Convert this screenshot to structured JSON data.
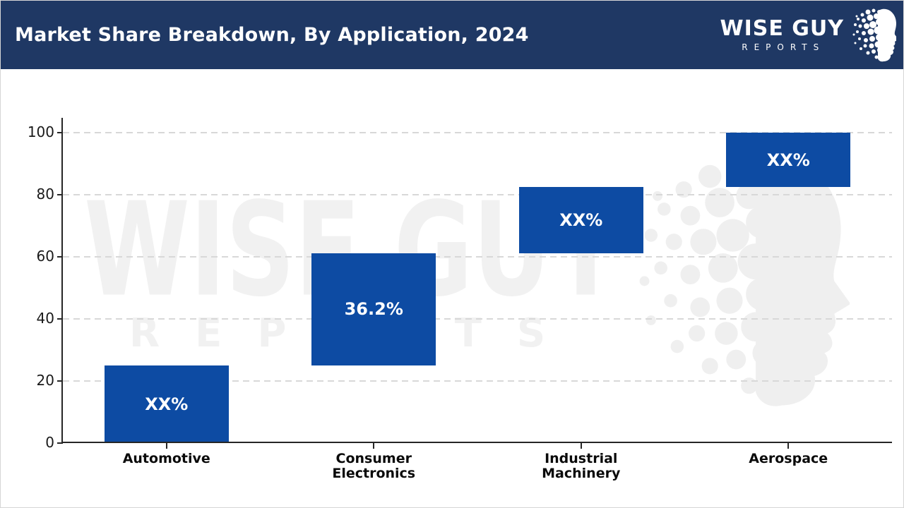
{
  "header": {
    "title": "Market Share Breakdown, By Application, 2024",
    "logo": {
      "line1": "WISE GUY",
      "line2": "REPORTS"
    }
  },
  "watermark": {
    "line1": "WISE GUY",
    "line2": "REPORTS"
  },
  "chart_data": {
    "type": "bar",
    "variant": "waterfall",
    "title": "Market Share Breakdown, By Application, 2024",
    "categories": [
      "Automotive",
      "Consumer Electronics",
      "Industrial Machinery",
      "Aerospace"
    ],
    "bars": [
      {
        "category": "Automotive",
        "start": 0,
        "end": 25,
        "label": "XX%"
      },
      {
        "category": "Consumer Electronics",
        "start": 25,
        "end": 61.2,
        "label": "36.2%"
      },
      {
        "category": "Industrial Machinery",
        "start": 61.2,
        "end": 82.4,
        "label": "XX%"
      },
      {
        "category": "Aerospace",
        "start": 82.4,
        "end": 100,
        "label": "XX%"
      }
    ],
    "ylim": [
      0,
      100
    ],
    "yticks": [
      0,
      20,
      40,
      60,
      80,
      100
    ],
    "grid": "horizontal-dashed",
    "legend": "none",
    "bar_color": "#0d4ba3",
    "bar_label_color": "#ffffff",
    "axis_color": "#262626",
    "gridline_color": "#d8d8d8",
    "header_bg": "#1f3864"
  }
}
